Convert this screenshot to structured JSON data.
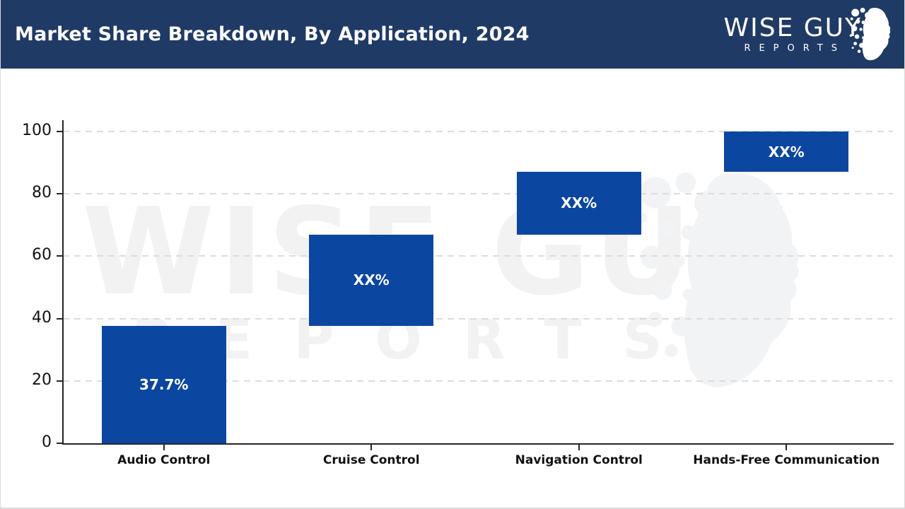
{
  "header": {
    "title": "Market Share Breakdown, By Application, 2024",
    "bg_color": "#203a66",
    "logo": {
      "line1": "WISE GUY",
      "line2": "REPORTS"
    }
  },
  "watermark": {
    "line1": "WISE GUY",
    "line2": "REPORTS"
  },
  "chart_data": {
    "type": "bar",
    "subtype": "waterfall",
    "title": "Market Share Breakdown, By Application, 2024",
    "categories": [
      "Audio Control",
      "Cruise Control",
      "Navigation Control",
      "Hands-Free Communication"
    ],
    "series": [
      {
        "name": "Market Share",
        "segments": [
          {
            "start": 0,
            "end": 37.7,
            "label": "37.7%"
          },
          {
            "start": 37.7,
            "end": 67,
            "label": "XX%"
          },
          {
            "start": 67,
            "end": 87,
            "label": "XX%"
          },
          {
            "start": 87,
            "end": 100,
            "label": "XX%"
          }
        ]
      }
    ],
    "xlabel": "",
    "ylabel": "",
    "ylim": [
      0,
      100
    ],
    "yticks": [
      0,
      20,
      40,
      60,
      80,
      100
    ],
    "grid": "horizontal-dashed",
    "legend": false,
    "bar_color": "#0b46a1",
    "bar_label_color": "#ffffff",
    "axis_color": "#262626"
  }
}
